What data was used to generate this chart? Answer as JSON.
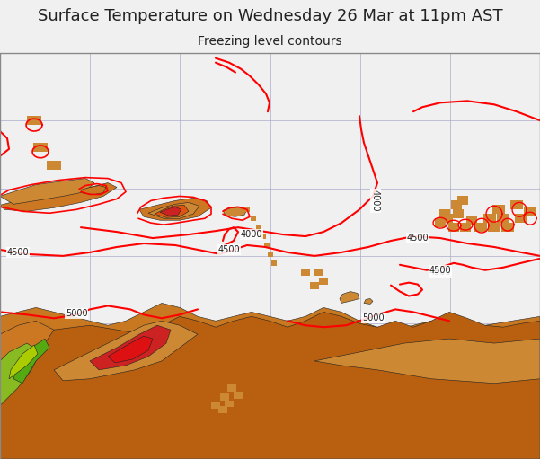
{
  "title": "Surface Temperature on Wednesday 26 Mar at 11pm AST",
  "subtitle": "Freezing level contours",
  "title_fontsize": 13,
  "subtitle_fontsize": 10,
  "title_color": "#222222",
  "header_bg": "#f0f0f0",
  "map_bg": "#c8cfe8",
  "fig_width": 6.01,
  "fig_height": 5.11,
  "dpi": 100,
  "grid_color": "#aaaacc",
  "grid_linewidth": 0.5,
  "contour_color": "#ff0000",
  "contour_linewidth": 1.5,
  "contour_labels": [
    "4000",
    "4500",
    "5000"
  ],
  "land_colors": {
    "deep_orange": "#b85c00",
    "orange": "#cc6600",
    "light_orange": "#dd8800",
    "dark_red": "#aa0000",
    "red": "#cc1111",
    "yellow_green": "#88aa00",
    "green": "#44aa22",
    "tan": "#c8882a"
  }
}
